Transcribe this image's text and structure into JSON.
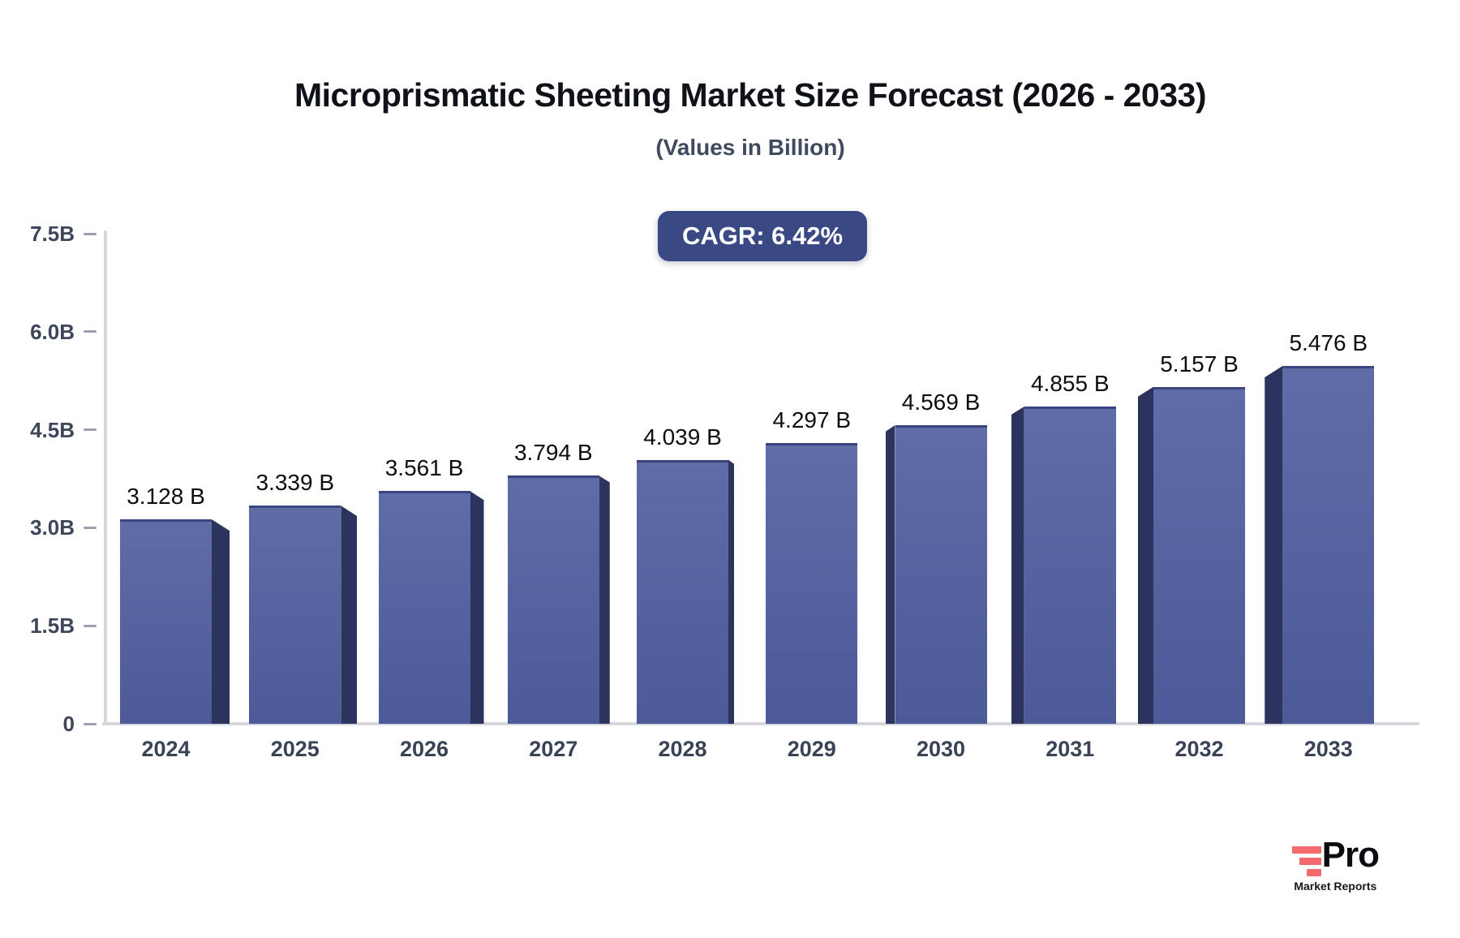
{
  "chart_data": {
    "type": "bar",
    "title": "Microprismatic Sheeting Market Size Forecast (2026 - 2033)",
    "subtitle": "(Values in Billion)",
    "badge_label": "CAGR: 6.42%",
    "categories": [
      "2024",
      "2025",
      "2026",
      "2027",
      "2028",
      "2029",
      "2030",
      "2031",
      "2032",
      "2033"
    ],
    "values": [
      3.128,
      3.339,
      3.561,
      3.794,
      4.039,
      4.297,
      4.569,
      4.855,
      5.157,
      5.476
    ],
    "value_labels": [
      "3.128 B",
      "3.339 B",
      "3.561 B",
      "3.794 B",
      "4.039 B",
      "4.297 B",
      "4.569 B",
      "4.855 B",
      "5.157 B",
      "5.476 B"
    ],
    "unit": "Billion",
    "y_ticks": [
      {
        "label": "7.5B",
        "value": 7.5
      },
      {
        "label": "6.0B",
        "value": 6.0
      },
      {
        "label": "4.5B",
        "value": 4.5
      },
      {
        "label": "3.0B",
        "value": 3.0
      },
      {
        "label": "1.5B",
        "value": 1.5
      },
      {
        "label": "0",
        "value": 0
      }
    ],
    "ylim": [
      0,
      7.5
    ],
    "grid": false,
    "legend": false,
    "colors": {
      "bar_face_top": "#5f6ca6",
      "bar_face_bottom": "#4d5a99",
      "bar_side": "#2c345e",
      "bar_edge": "#39457c",
      "badge_bg": "#3a4884",
      "badge_text": "#ffffff",
      "axis_line": "#d6d7de",
      "tick": "#9aa0ad",
      "axis_text": "#3e4659",
      "title_text": "#10121a",
      "subtitle_text": "#3f4a5f",
      "value_text": "#0b0d12"
    }
  },
  "logo": {
    "brand": "Pro",
    "tagline": "Market Reports",
    "accent": "#f4696b"
  }
}
